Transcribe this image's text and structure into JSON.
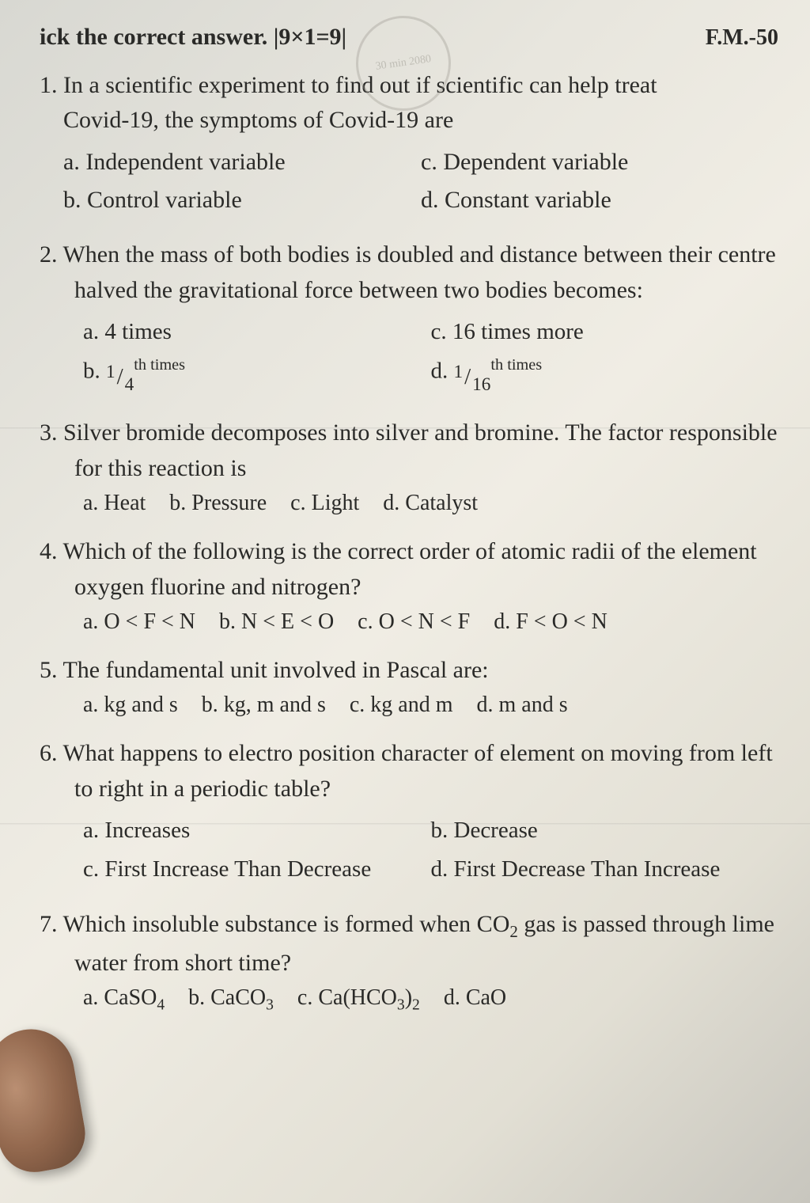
{
  "header": {
    "instruction": "ick the correct answer. |9×1=9|",
    "marks": "F.M.-50"
  },
  "q1": {
    "num": "1.",
    "stem_l1": "In a scientific experiment to find out if scientific can help treat",
    "stem_l2": "Covid-19, the symptoms of Covid-19 are",
    "a": "a. Independent variable",
    "b": "b. Control variable",
    "c": "c. Dependent variable",
    "d": "d. Constant variable"
  },
  "q2": {
    "num": "2.",
    "stem": "When the mass of both bodies is doubled and distance between their centre halved the gravitational force between two bodies becomes:",
    "a": "a.  4 times",
    "c": "c.  16 times more",
    "b_pre": "b.  ",
    "b_num": "1",
    "b_den": "4",
    "b_post": "th times",
    "d_pre": "d.  ",
    "d_num": "1",
    "d_den": "16",
    "d_post": "th times"
  },
  "q3": {
    "num": "3.",
    "stem": "Silver bromide decomposes into silver and bromine. The factor responsible for this reaction is",
    "a": "a.  Heat",
    "b": "b. Pressure",
    "c": "c. Light",
    "d": "d. Catalyst"
  },
  "q4": {
    "num": "4.",
    "stem": "Which of the following is the correct order of atomic radii of the element oxygen fluorine and nitrogen?",
    "a": "a.  O < F < N",
    "b": "b. N < E < O",
    "c": "c. O < N < F",
    "d": "d. F < O < N"
  },
  "q5": {
    "num": "5.",
    "stem": "The fundamental unit involved in Pascal are:",
    "a": "a. kg and s",
    "b": "b. kg, m and s",
    "c": "c. kg and m",
    "d": "d. m and s"
  },
  "q6": {
    "num": "6.",
    "stem": "What happens to electro position character of element on moving from left to right in a periodic table?",
    "a": "a. Increases",
    "b": "b. Decrease",
    "c": "c. First Increase Than Decrease",
    "d": "d. First Decrease Than Increase"
  },
  "q7": {
    "num": "7.",
    "stem_pre": "Which insoluble substance is formed when CO",
    "stem_sub": "2",
    "stem_post": " gas is passed through lime water from short time?",
    "a_pre": "a. CaSO",
    "a_sub": "4",
    "b_pre": "b. CaCO",
    "b_sub": "3",
    "c_pre": "c. Ca(HCO",
    "c_sub1": "3",
    "c_mid": ")",
    "c_sub2": "2",
    "d": "d. CaO"
  },
  "stamp_text": "30 min  2080"
}
